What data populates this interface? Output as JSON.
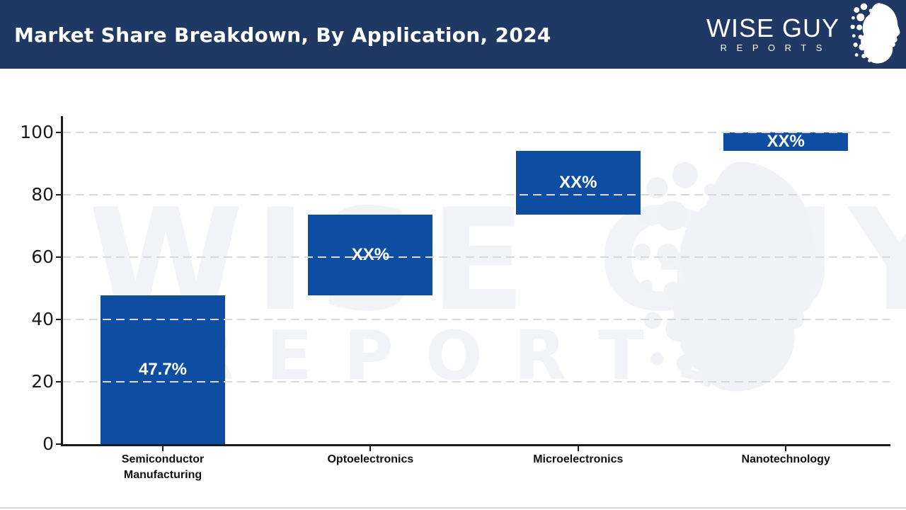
{
  "header": {
    "title": "Market Share Breakdown, By Application, 2024",
    "logo": {
      "brand": "WISE GUY",
      "sub": "R E P O R T S"
    }
  },
  "watermark": {
    "brand": "WISE GUY",
    "sub": "R E P O R T S"
  },
  "chart_data": {
    "type": "bar",
    "subtype": "waterfall",
    "title": "Market Share Breakdown, By Application, 2024",
    "categories": [
      "Semiconductor Manufacturing",
      "Optoelectronics",
      "Microelectronics",
      "Nanotechnology"
    ],
    "segments": [
      {
        "start": 0,
        "end": 47.7,
        "label": "47.7%"
      },
      {
        "start": 47.7,
        "end": 73.5,
        "label": "XX%"
      },
      {
        "start": 73.5,
        "end": 93.9,
        "label": "XX%"
      },
      {
        "start": 93.9,
        "end": 100,
        "label": "XX%"
      }
    ],
    "yticks": [
      0,
      20,
      40,
      60,
      80,
      100
    ],
    "ylim": [
      0,
      105
    ],
    "xlabel": "",
    "ylabel": "",
    "grid": "horizontal-dashed",
    "legend": false,
    "bar_color": "#0d4da2",
    "bar_label_color": "#ffffff"
  },
  "colors": {
    "header_bg": "#1f3864",
    "title_text": "#ffffff",
    "bar": "#0d4da2",
    "bar_label": "#ffffff",
    "grid": "#d9d9d9",
    "axis": "#1a1a1a",
    "axis_text": "#1a1a1a",
    "watermark": "#f2f3f6",
    "bottom_rule": "#d4d4d4"
  }
}
